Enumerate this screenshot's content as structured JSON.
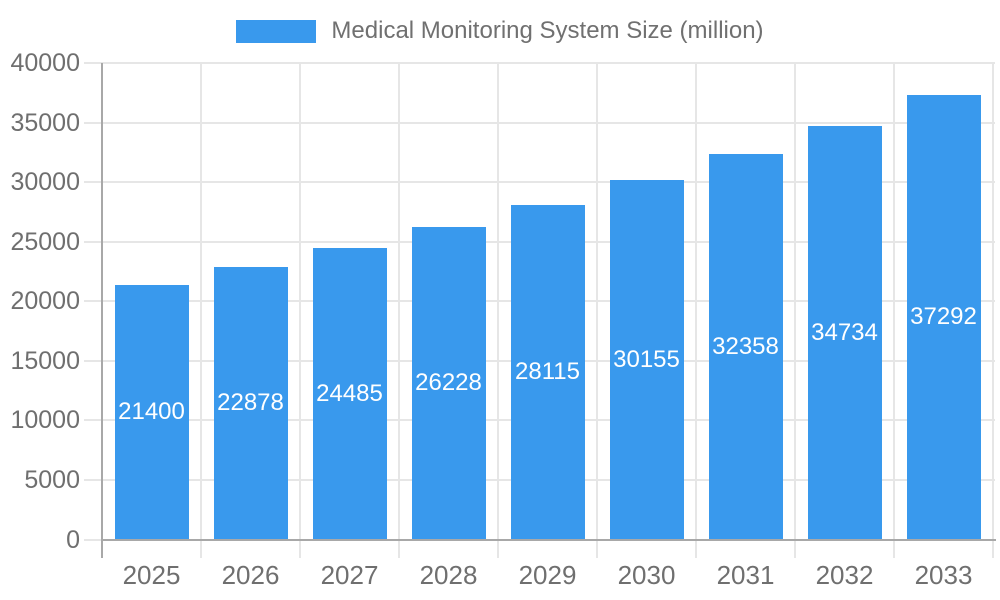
{
  "chart_data": {
    "type": "bar",
    "title": "Medical Monitoring System Size (million)",
    "legend_position": "top",
    "grid": true,
    "categories": [
      "2025",
      "2026",
      "2027",
      "2028",
      "2029",
      "2030",
      "2031",
      "2032",
      "2033"
    ],
    "series": [
      {
        "name": "Medical Monitoring System Size (million)",
        "values": [
          21400,
          22878,
          24485,
          26228,
          28115,
          30155,
          32358,
          34734,
          37292
        ]
      }
    ],
    "value_labels": [
      "21400",
      "22878",
      "24485",
      "26228",
      "28115",
      "30155",
      "32358",
      "34734",
      "37292"
    ],
    "xlabel": "",
    "ylabel": "",
    "ylim": [
      0,
      40000
    ],
    "y_ticks": [
      0,
      5000,
      10000,
      15000,
      20000,
      25000,
      30000,
      35000,
      40000
    ],
    "colors": {
      "bar": "#3999ED",
      "grid": "#E6E6E6",
      "axis_line": "#A8A8A8",
      "tick_text": "#6F6F6F",
      "legend_text": "#707070",
      "value_text": "#FFFFFF"
    }
  }
}
